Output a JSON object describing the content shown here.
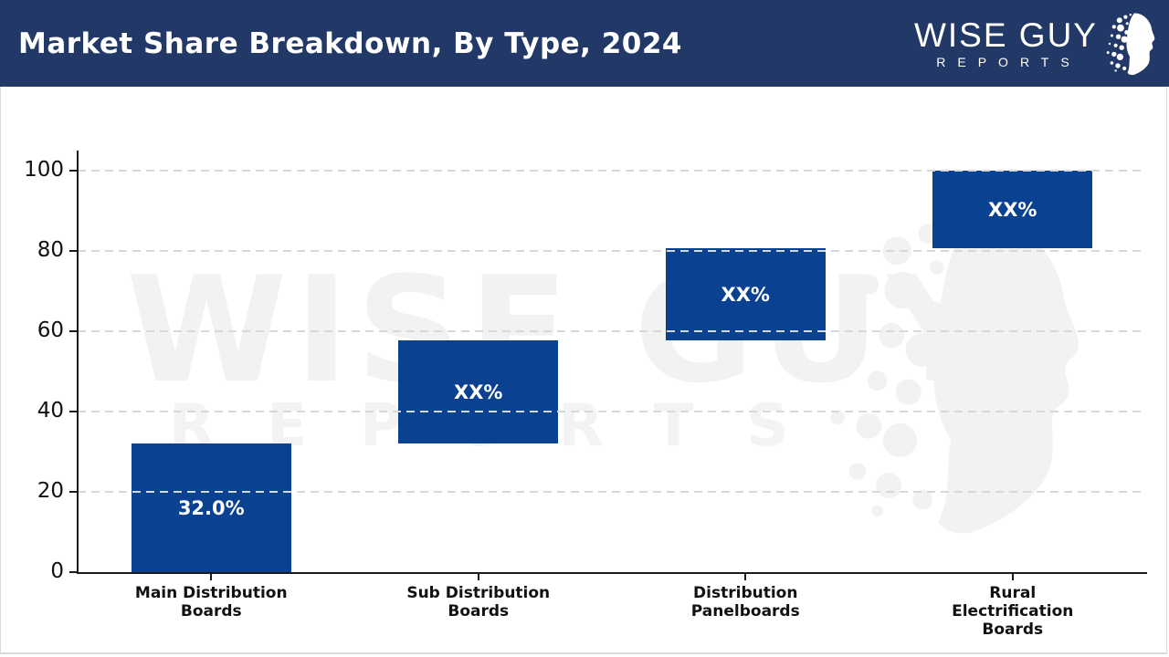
{
  "header": {
    "title": "Market Share Breakdown, By Type, 2024",
    "background_color": "#223968",
    "logo": {
      "line1": "WISE GUY",
      "line2": "REPORTS"
    }
  },
  "watermark": {
    "line1": "WISE GUY",
    "line2": "REPORTS"
  },
  "chart_data": {
    "type": "bar",
    "subtype": "waterfall",
    "title": "Market Share Breakdown, By Type, 2024",
    "categories": [
      "Main Distribution\nBoards",
      "Sub Distribution\nBoards",
      "Distribution\nPanelboards",
      "Rural\nElectrification\nBoards"
    ],
    "segments": [
      {
        "category": "Main Distribution Boards",
        "start": 0,
        "end": 32,
        "label": "32.0%"
      },
      {
        "category": "Sub Distribution Boards",
        "start": 32,
        "end": 57.7,
        "label": "XX%"
      },
      {
        "category": "Distribution Panelboards",
        "start": 57.7,
        "end": 80.6,
        "label": "XX%"
      },
      {
        "category": "Rural Electrification Boards",
        "start": 80.6,
        "end": 100,
        "label": "XX%"
      }
    ],
    "yticks": [
      0,
      20,
      40,
      60,
      80,
      100
    ],
    "ylim": [
      0,
      100
    ],
    "xlabel": "",
    "ylabel": "",
    "grid": "horizontal-dashed-over-bars",
    "legend": "none",
    "bar_color": "#0b4191",
    "bar_value_label_color": "#ffffff",
    "axis_color": "#1a1a1a",
    "gridline_color": "#d8d8d8"
  }
}
